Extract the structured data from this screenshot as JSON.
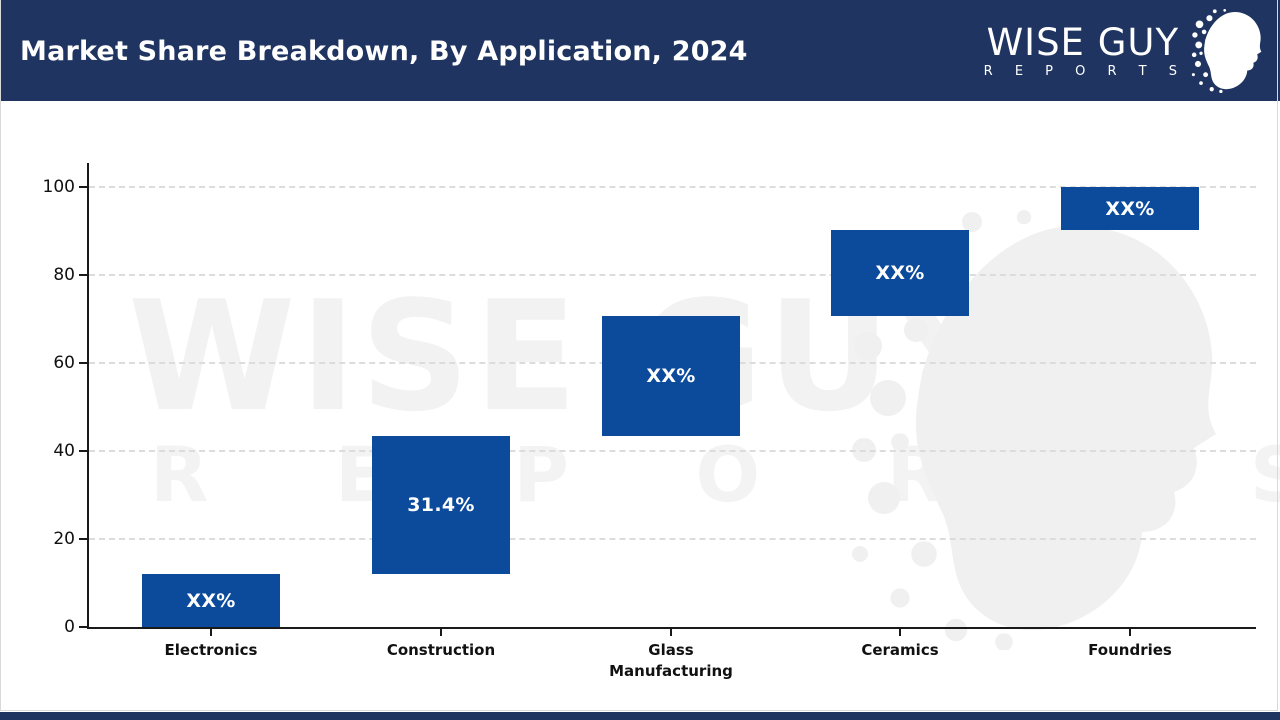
{
  "header": {
    "title": "Market Share Breakdown, By Application, 2024",
    "logo": {
      "line1": "WISE GUY",
      "line2": "R E P O R T S"
    }
  },
  "watermark": {
    "line1": "WISE GUY",
    "line2": "R E P O R T S"
  },
  "colors": {
    "header_bg": "#1f3461",
    "footer_bg": "#1f3461",
    "bar": "#0c4a9c",
    "bar_label": "#ffffff",
    "grid": "#dcdcdc",
    "axis": "#1a1a1a",
    "watermark": "#f2f2f2"
  },
  "chart_data": {
    "type": "bar",
    "subtype": "waterfall",
    "title": "Market Share Breakdown, By Application, 2024",
    "categories": [
      "Electronics",
      "Construction",
      "Glass Manufacturing",
      "Ceramics",
      "Foundries"
    ],
    "category_label_lines": [
      [
        "Electronics"
      ],
      [
        "Construction"
      ],
      [
        "Glass",
        "Manufacturing"
      ],
      [
        "Ceramics"
      ],
      [
        "Foundries"
      ]
    ],
    "segments": [
      {
        "category": "Electronics",
        "start": 0,
        "end": 12,
        "label": "XX%"
      },
      {
        "category": "Construction",
        "start": 12,
        "end": 43.4,
        "label": "31.4%"
      },
      {
        "category": "Glass Manufacturing",
        "start": 43.4,
        "end": 70.7,
        "label": "XX%"
      },
      {
        "category": "Ceramics",
        "start": 70.7,
        "end": 90.2,
        "label": "XX%"
      },
      {
        "category": "Foundries",
        "start": 90.2,
        "end": 100,
        "label": "XX%"
      }
    ],
    "yticks": [
      0,
      20,
      40,
      60,
      80,
      100
    ],
    "ylim": [
      0,
      105.5
    ],
    "xlabel": "",
    "ylabel": "",
    "grid": "horizontal-dashed",
    "legend": false,
    "bar_color": "#0c4a9c"
  }
}
